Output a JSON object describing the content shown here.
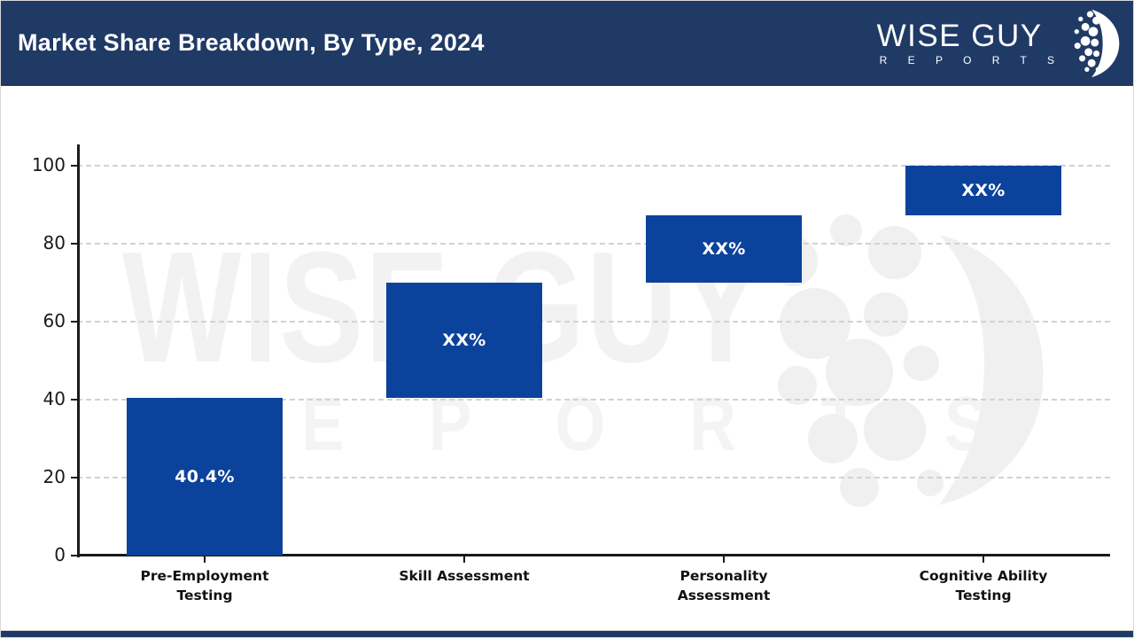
{
  "header": {
    "title": "Market Share Breakdown, By Type, 2024",
    "logo": {
      "line1": "WISE GUY",
      "line2": "R E P O R T S"
    }
  },
  "watermark": {
    "line1": "WISE GUY",
    "line2": "R E P O R T S"
  },
  "chart_data": {
    "type": "bar",
    "subtype": "waterfall",
    "title": "Market Share Breakdown, By Type, 2024",
    "categories": [
      "Pre-Employment Testing",
      "Skill Assessment",
      "Personality Assessment",
      "Cognitive Ability Testing"
    ],
    "category_lines": [
      [
        "Pre-Employment",
        "Testing"
      ],
      [
        "Skill Assessment"
      ],
      [
        "Personality",
        "Assessment"
      ],
      [
        "Cognitive Ability",
        "Testing"
      ]
    ],
    "segments": [
      {
        "category": "Pre-Employment Testing",
        "start": 0,
        "end": 40.4,
        "label": "40.4%"
      },
      {
        "category": "Skill Assessment",
        "start": 40.4,
        "end": 70.0,
        "label": "XX%"
      },
      {
        "category": "Personality Assessment",
        "start": 70.0,
        "end": 87.3,
        "label": "XX%"
      },
      {
        "category": "Cognitive Ability Testing",
        "start": 87.3,
        "end": 100.0,
        "label": "XX%"
      }
    ],
    "ylim": [
      0,
      100
    ],
    "yticks": [
      0,
      20,
      40,
      60,
      80,
      100
    ],
    "grid": "horizontal-dashed",
    "legend": "none",
    "xlabel": "",
    "ylabel": ""
  },
  "colors": {
    "header_bg": "#203a66",
    "footer_bg": "#203a66",
    "bar": "#0b429b",
    "gridline": "#d2d2d2",
    "axis": "#1a1a1a",
    "watermark": "#f2f2f2"
  }
}
